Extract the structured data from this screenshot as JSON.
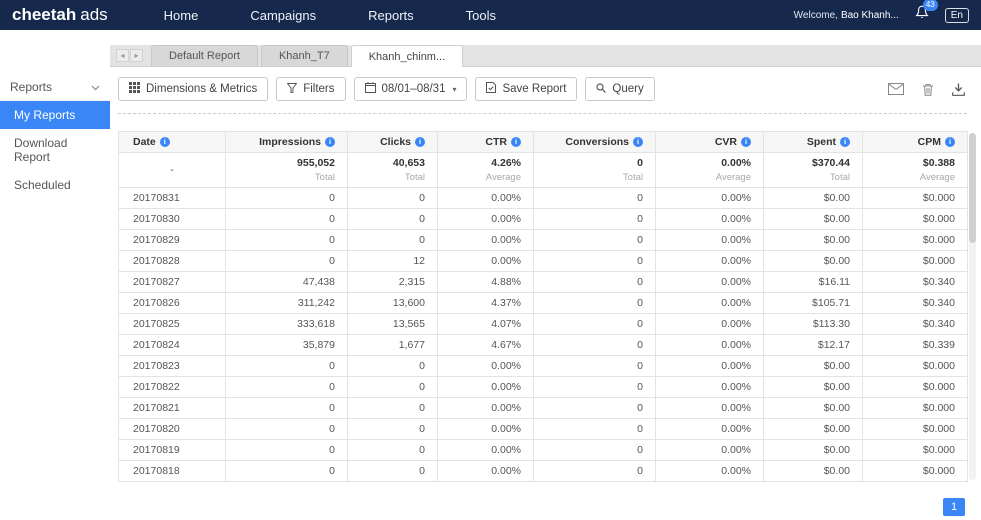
{
  "accent_color": "#3b86f6",
  "navbar_color": "#16294c",
  "icons": {
    "tab_scroll_left": "◂",
    "tab_scroll_right": "▸",
    "caret_down": "▾"
  },
  "navbar": {
    "brand": {
      "bold": "cheetah",
      "light": "ads"
    },
    "items": [
      {
        "label": "Home"
      },
      {
        "label": "Campaigns"
      },
      {
        "label": "Reports"
      },
      {
        "label": "Tools"
      }
    ],
    "welcome": "Welcome,",
    "user": "Bao Khanh...",
    "notification_count": "43",
    "language": "En"
  },
  "sidebar": {
    "section_label": "Reports",
    "items": [
      {
        "label": "My Reports"
      },
      {
        "label": "Download Report"
      },
      {
        "label": "Scheduled"
      }
    ]
  },
  "tabs": [
    {
      "label": "Default Report"
    },
    {
      "label": "Khanh_T7"
    },
    {
      "label": "Khanh_chinm..."
    }
  ],
  "toolbar": {
    "dimensions_metrics_label": "Dimensions & Metrics",
    "filters_label": "Filters",
    "date_range_label": "08/01–08/31",
    "save_report_label": "Save Report",
    "query_label": "Query"
  },
  "table": {
    "columns": [
      "Date",
      "Impressions",
      "Clicks",
      "CTR",
      "Conversions",
      "CVR",
      "Spent",
      "CPM"
    ],
    "total_row": {
      "date": "-",
      "cells": [
        {
          "value": "955,052",
          "sub": "Total"
        },
        {
          "value": "40,653",
          "sub": "Total"
        },
        {
          "value": "4.26%",
          "sub": "Average"
        },
        {
          "value": "0",
          "sub": "Total"
        },
        {
          "value": "0.00%",
          "sub": "Average"
        },
        {
          "value": "$370.44",
          "sub": "Total"
        },
        {
          "value": "$0.388",
          "sub": "Average"
        }
      ]
    },
    "rows": [
      [
        "20170831",
        "0",
        "0",
        "0.00%",
        "0",
        "0.00%",
        "$0.00",
        "$0.000"
      ],
      [
        "20170830",
        "0",
        "0",
        "0.00%",
        "0",
        "0.00%",
        "$0.00",
        "$0.000"
      ],
      [
        "20170829",
        "0",
        "0",
        "0.00%",
        "0",
        "0.00%",
        "$0.00",
        "$0.000"
      ],
      [
        "20170828",
        "0",
        "12",
        "0.00%",
        "0",
        "0.00%",
        "$0.00",
        "$0.000"
      ],
      [
        "20170827",
        "47,438",
        "2,315",
        "4.88%",
        "0",
        "0.00%",
        "$16.11",
        "$0.340"
      ],
      [
        "20170826",
        "311,242",
        "13,600",
        "4.37%",
        "0",
        "0.00%",
        "$105.71",
        "$0.340"
      ],
      [
        "20170825",
        "333,618",
        "13,565",
        "4.07%",
        "0",
        "0.00%",
        "$113.30",
        "$0.340"
      ],
      [
        "20170824",
        "35,879",
        "1,677",
        "4.67%",
        "0",
        "0.00%",
        "$12.17",
        "$0.339"
      ],
      [
        "20170823",
        "0",
        "0",
        "0.00%",
        "0",
        "0.00%",
        "$0.00",
        "$0.000"
      ],
      [
        "20170822",
        "0",
        "0",
        "0.00%",
        "0",
        "0.00%",
        "$0.00",
        "$0.000"
      ],
      [
        "20170821",
        "0",
        "0",
        "0.00%",
        "0",
        "0.00%",
        "$0.00",
        "$0.000"
      ],
      [
        "20170820",
        "0",
        "0",
        "0.00%",
        "0",
        "0.00%",
        "$0.00",
        "$0.000"
      ],
      [
        "20170819",
        "0",
        "0",
        "0.00%",
        "0",
        "0.00%",
        "$0.00",
        "$0.000"
      ],
      [
        "20170818",
        "0",
        "0",
        "0.00%",
        "0",
        "0.00%",
        "$0.00",
        "$0.000"
      ]
    ]
  },
  "pagination": {
    "current_page": "1"
  }
}
